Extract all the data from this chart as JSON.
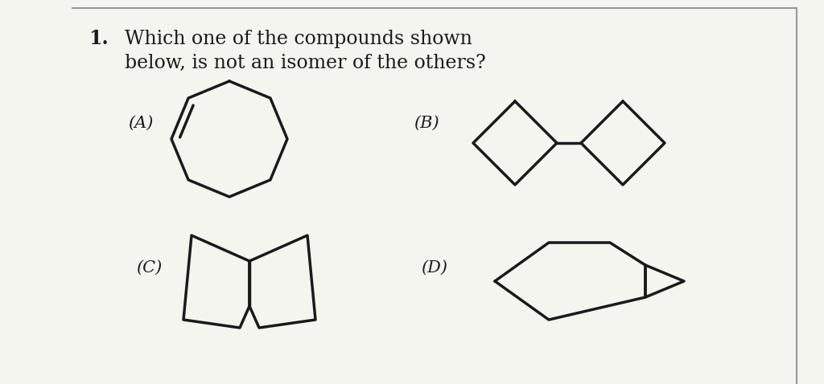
{
  "bg_color": "#f5f5f0",
  "line_color": "#1a1a1a",
  "text_color": "#1a1a1a",
  "lw": 2.5,
  "title_number": "1.",
  "title_line1": "Which one of the compounds shown",
  "title_line2": "below, is not an isomer of the others?",
  "label_A": "(A)",
  "label_B": "(B)",
  "label_C": "(C)",
  "label_D": "(D)"
}
